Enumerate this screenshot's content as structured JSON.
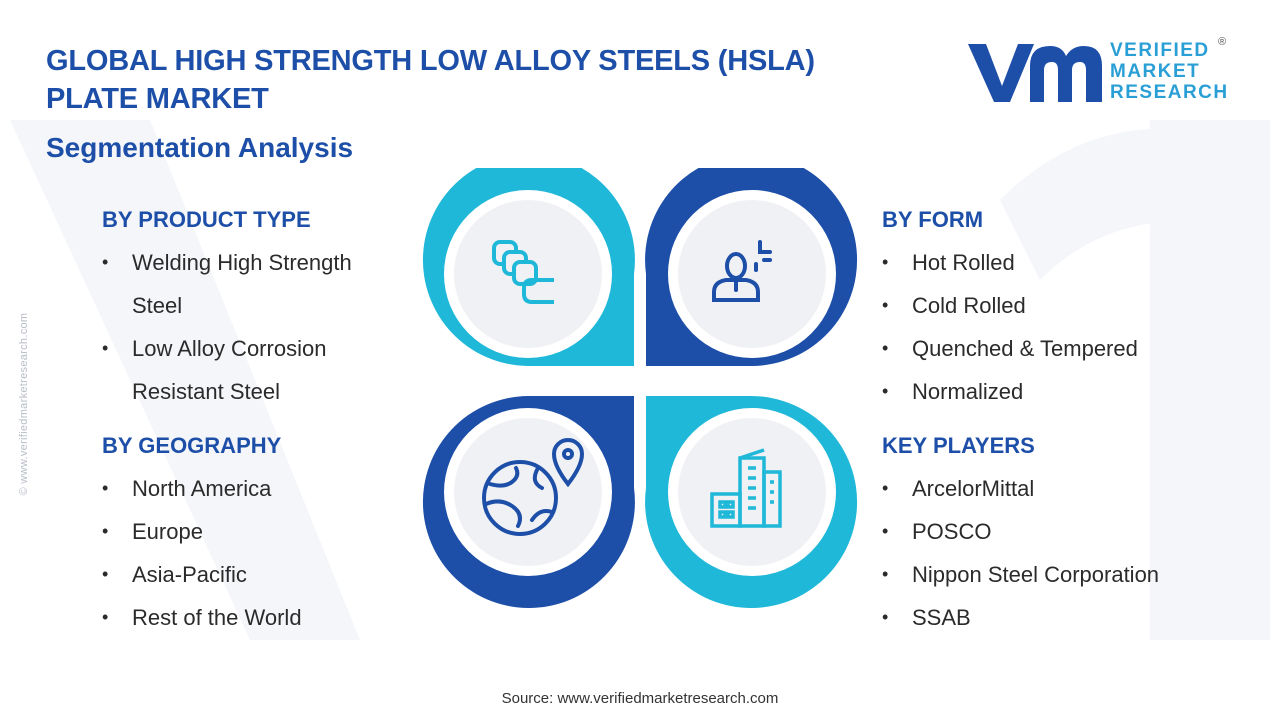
{
  "header": {
    "title": "GLOBAL HIGH STRENGTH LOW ALLOY STEELS (HSLA) PLATE MARKET",
    "subtitle": "Segmentation Analysis"
  },
  "logo": {
    "line1": "VERIFIED",
    "line2": "MARKET",
    "line3": "RESEARCH",
    "registered": "®"
  },
  "side_watermark": "© www.verifiedmarketresearch.com",
  "segments": {
    "product_type": {
      "heading": "BY PRODUCT TYPE",
      "items": [
        "Welding High Strength Steel",
        "Low Alloy Corrosion Resistant Steel"
      ]
    },
    "geography": {
      "heading": "BY GEOGRAPHY",
      "items": [
        "North America",
        "Europe",
        "Asia-Pacific",
        "Rest of the World"
      ]
    },
    "form": {
      "heading": "BY FORM",
      "items": [
        "Hot Rolled",
        "Cold Rolled",
        "Quenched & Tempered",
        "Normalized"
      ]
    },
    "key_players": {
      "heading": "KEY PLAYERS",
      "items": [
        "ArcelorMittal",
        "POSCO",
        "Nippon Steel Corporation",
        "SSAB"
      ]
    }
  },
  "icons": {
    "top_left": "stacked-plates-icon",
    "top_right": "user-with-signal-icon",
    "bottom_left": "globe-location-icon",
    "bottom_right": "city-buildings-icon"
  },
  "colors": {
    "dark_blue": "#1d4fa8",
    "light_cyan": "#1fb8d8",
    "inner_gray": "#f0f1f4"
  },
  "footer": {
    "source": "Source: www.verifiedmarketresearch.com"
  }
}
